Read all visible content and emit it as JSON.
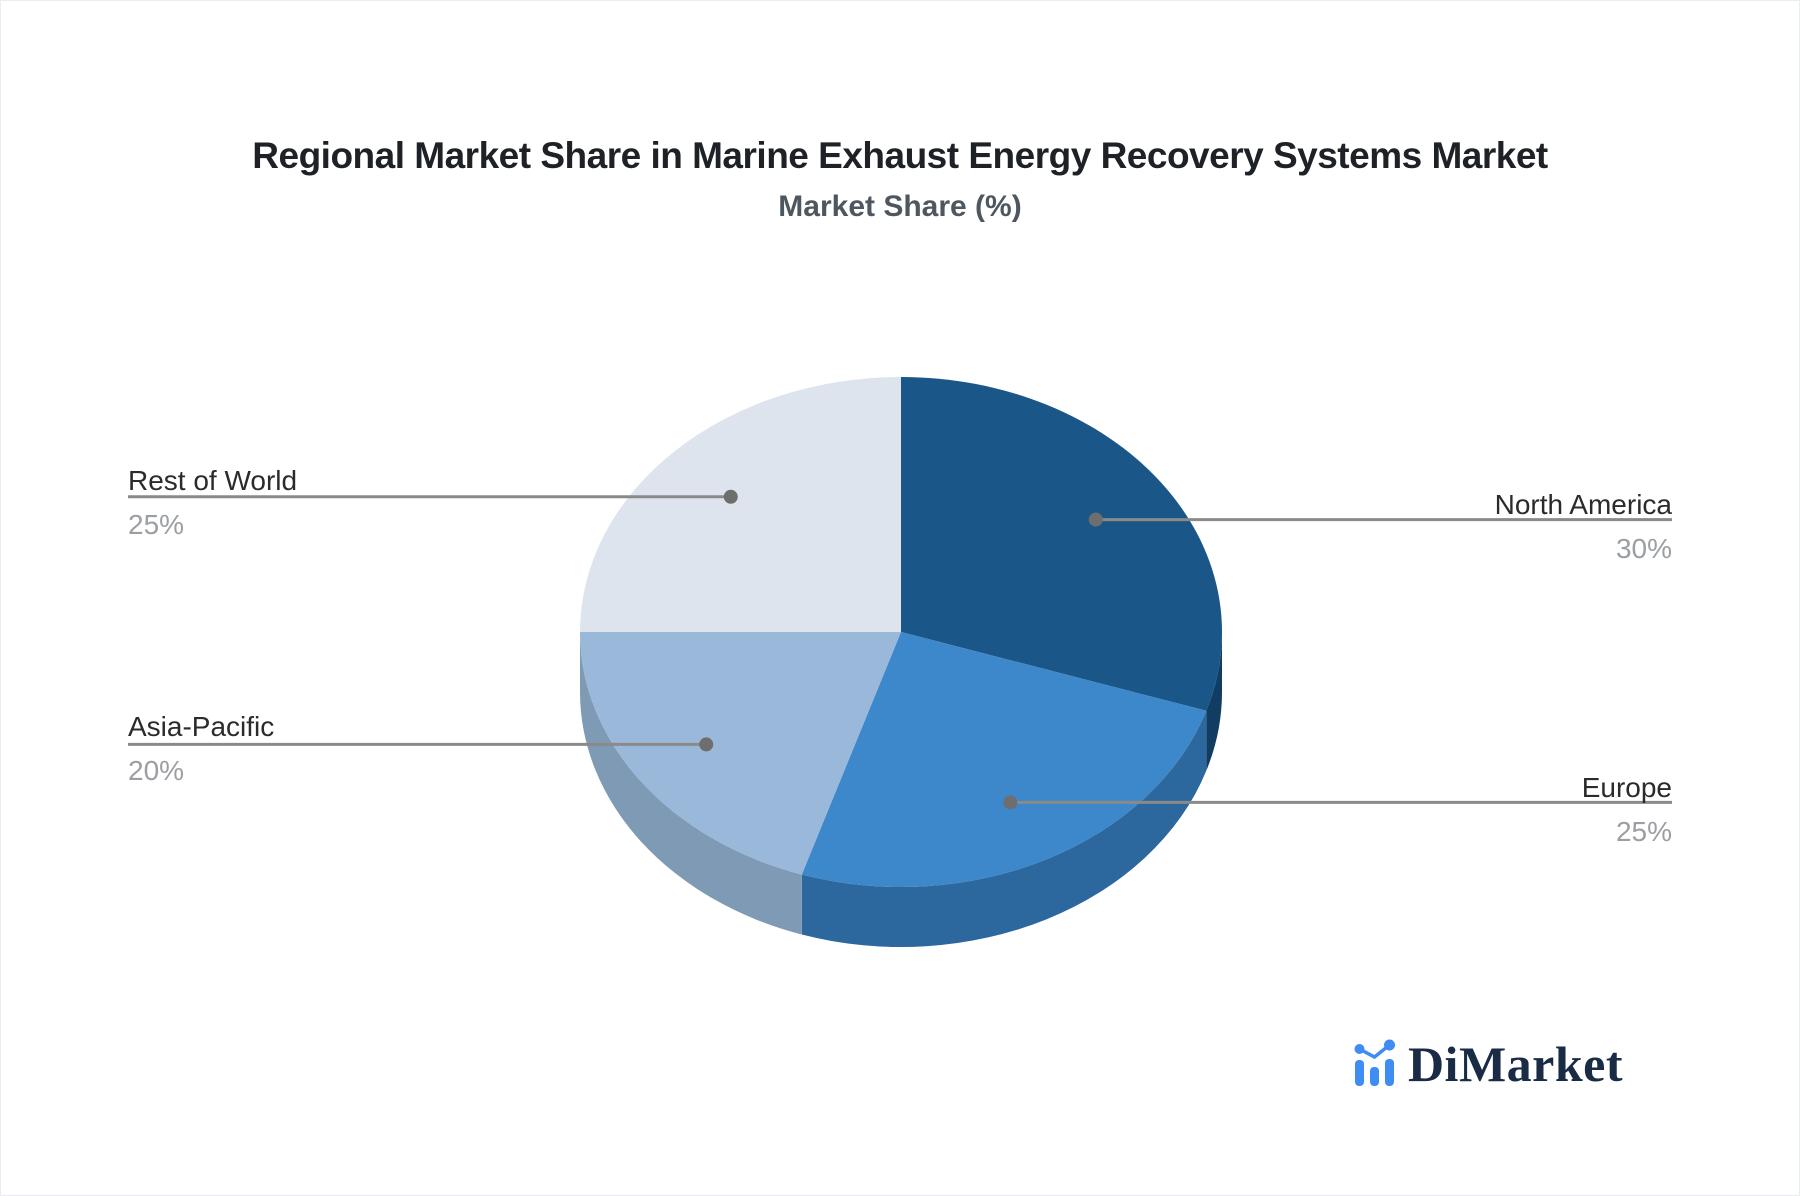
{
  "page": {
    "background_color": "#ffffff"
  },
  "title": "Regional Market Share in Marine Exhaust Energy Recovery Systems Market",
  "subtitle": "Market Share (%)",
  "chart_data": {
    "type": "pie",
    "style": "3d",
    "title": "Regional Market Share in Marine Exhaust Energy Recovery Systems Market",
    "subtitle": "Market Share (%)",
    "unit": "%",
    "start_angle_deg": 0,
    "direction": "clockwise",
    "labels": [
      "North America",
      "Europe",
      "Asia-Pacific",
      "Rest of World"
    ],
    "values": [
      30,
      25,
      20,
      25
    ],
    "value_labels": [
      "30%",
      "25%",
      "20%",
      "25%"
    ],
    "colors": [
      "#1A5788",
      "#3D88CB",
      "#9AB8DA",
      "#DEE4EE"
    ],
    "side_colors": [
      "#113D62",
      "#2C679E",
      "#7E9AB5",
      "#B9C2CF"
    ],
    "label_sides": [
      "right",
      "right",
      "left",
      "left"
    ],
    "legend": "none"
  },
  "callout_style": {
    "leader_line_color": "#8a8a8a",
    "leader_dot_color": "#6e6e6e",
    "name_color": "#2b2b2b",
    "value_color": "#9b9fa3"
  },
  "logo": {
    "text": "DiMarket",
    "icon": "bar-line-chart-icon",
    "icon_color": "#3F8CF3",
    "text_color": "#1A2B45"
  }
}
